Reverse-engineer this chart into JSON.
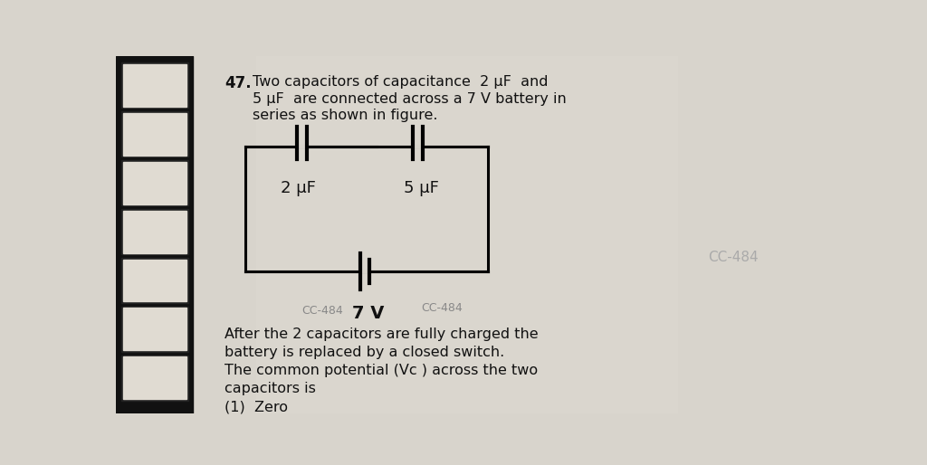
{
  "main_bg": "#d8d4cc",
  "left_panel_color": "#111111",
  "thumbnail_color": "#e8e4dc",
  "thumbnail_border": "#333333",
  "title_num": "47.",
  "title_text_line1": "Two capacitors of capacitance  2 μF  and",
  "title_text_line2": "5 μF  are connected across a 7 V battery in",
  "title_text_line3": "series as shown in figure.",
  "cap1_label": "2 μF",
  "cap2_label": "5 μF",
  "battery_label": "7 V",
  "watermark": "CC-484",
  "bottom_text_line1": "After the 2 capacitors are fully charged the",
  "bottom_text_line2": "battery is replaced by a closed switch.",
  "bottom_text_line3": "The common potential (Vᴄ ) across the two",
  "bottom_text_line4": "capacitors is",
  "answer_line": "(1)  Zero",
  "circuit_color": "#000000",
  "text_color": "#111111",
  "watermark_color": "#888888",
  "right_watermark_color": "#aaaaaa"
}
